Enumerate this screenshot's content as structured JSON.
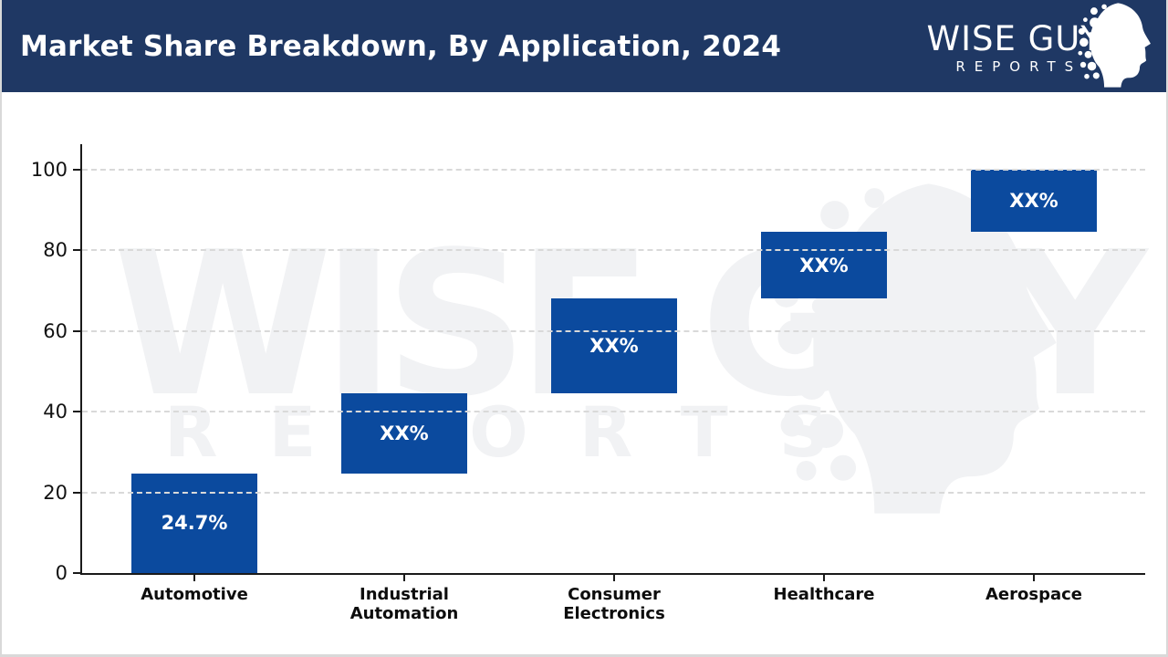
{
  "header": {
    "title": "Market Share Breakdown, By Application, 2024",
    "logo": {
      "line1": "WISE GUY",
      "line2": "REPORTS"
    }
  },
  "watermark": {
    "line1": "WISE GUY",
    "line2": "REPORTS"
  },
  "chart_data": {
    "type": "bar",
    "subtype": "waterfall",
    "title": "Market Share Breakdown, By Application, 2024",
    "categories": [
      "Automotive",
      "Industrial Automation",
      "Consumer Electronics",
      "Healthcare",
      "Aerospace"
    ],
    "category_label_lines": [
      [
        "Automotive"
      ],
      [
        "Industrial",
        "Automation"
      ],
      [
        "Consumer",
        "Electronics"
      ],
      [
        "Healthcare"
      ],
      [
        "Aerospace"
      ]
    ],
    "segments": [
      {
        "category": "Automotive",
        "start": 0,
        "end": 24.7,
        "label": "24.7%"
      },
      {
        "category": "Industrial Automation",
        "start": 24.7,
        "end": 44.5,
        "label": "XX%"
      },
      {
        "category": "Consumer Electronics",
        "start": 44.5,
        "end": 68.0,
        "label": "XX%"
      },
      {
        "category": "Healthcare",
        "start": 68.0,
        "end": 84.5,
        "label": "XX%"
      },
      {
        "category": "Aerospace",
        "start": 84.5,
        "end": 100.0,
        "label": "XX%"
      }
    ],
    "xlabel": "",
    "ylabel": "",
    "ylim": [
      0,
      100
    ],
    "y_ticks": [
      0,
      20,
      40,
      60,
      80,
      100
    ],
    "grid": "horizontal-dashed",
    "legend": false,
    "bar_color": "#0b4a9e",
    "bar_label_color": "#ffffff"
  },
  "colors": {
    "header_bg": "#1f3864",
    "bar": "#0b4a9e",
    "grid": "#d9d9d9",
    "axis": "#1a1a1a",
    "watermark": "#f1f2f4"
  }
}
